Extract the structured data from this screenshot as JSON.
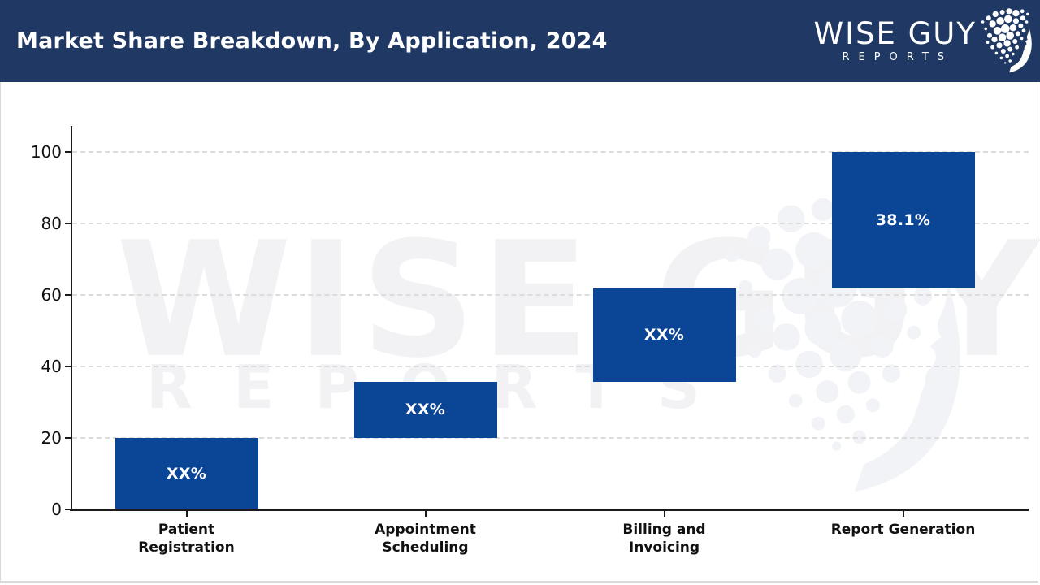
{
  "header": {
    "title": "Market Share Breakdown, By Application, 2024",
    "brand_line1": "WISE GUY",
    "brand_line2": "REPORTS"
  },
  "watermark": {
    "line1": "WISE GUY",
    "line2": "REPORTS"
  },
  "colors": {
    "header_bg": "#1F3864",
    "bar_fill": "#0B4596",
    "grid": "#DCDCDC",
    "axis": "#1A1A1A",
    "watermark": "#F2F2F5",
    "bar_label_text": "#FFFFFF"
  },
  "chart_data": {
    "type": "bar",
    "subtype": "waterfall",
    "title": "Market Share Breakdown, By Application, 2024",
    "xlabel": "",
    "ylabel": "",
    "ylim": [
      0,
      107
    ],
    "yticks": [
      0,
      20,
      40,
      60,
      80,
      100
    ],
    "grid": "dashed-horizontal",
    "legend": "none",
    "categories": [
      [
        "Patient",
        "Registration"
      ],
      [
        "Appointment",
        "Scheduling"
      ],
      [
        "Billing and",
        "Invoicing"
      ],
      [
        "Report Generation"
      ]
    ],
    "bars": [
      {
        "label": "XX%",
        "start": 0,
        "end": 20
      },
      {
        "label": "XX%",
        "start": 20,
        "end": 35.7
      },
      {
        "label": "XX%",
        "start": 35.7,
        "end": 61.9
      },
      {
        "label": "38.1%",
        "start": 61.9,
        "end": 100
      }
    ]
  }
}
